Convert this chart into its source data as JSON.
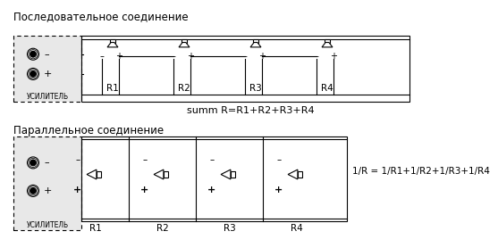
{
  "title_series": "Последовательное соединение",
  "title_parallel": "Параллельное соединение",
  "label_amp": "УСИЛИТЕЛЬ",
  "label_summ": "summ R=R1+R2+R3+R4",
  "label_parallel_formula": "1/R = 1/R1+1/R2+1/R3+1/R4",
  "speaker_labels": [
    "R1",
    "R2",
    "R3",
    "R4"
  ],
  "bg_color": "#ffffff",
  "text_color": "#000000",
  "gray_fill": "#e8e8e8",
  "font_size_title": 8.5,
  "font_size_label": 7,
  "font_size_formula": 8,
  "font_size_amp": 5.5,
  "font_size_r": 7.5,
  "font_size_plusminus": 8
}
